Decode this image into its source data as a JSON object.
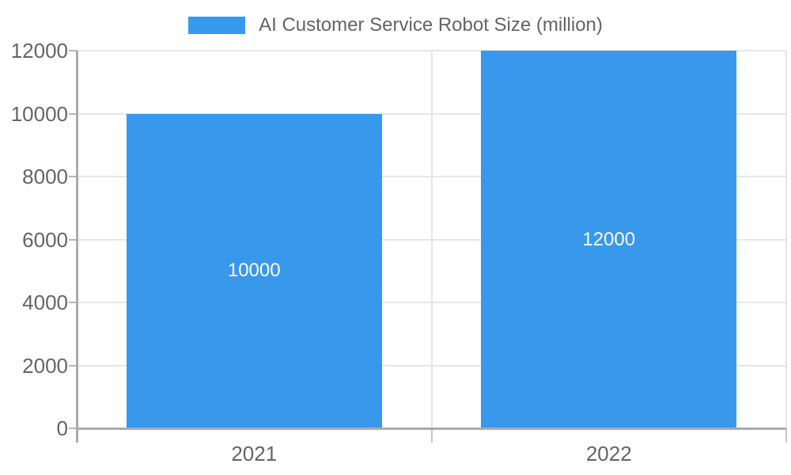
{
  "chart_data": {
    "type": "bar",
    "categories": [
      "2021",
      "2022"
    ],
    "values": [
      10000,
      12000
    ],
    "bar_labels": [
      "10000",
      "12000"
    ],
    "series_name": "AI Customer Service Robot Size (million)",
    "title": "",
    "xlabel": "",
    "ylabel": "",
    "ylim": [
      0,
      12000
    ],
    "ytick_interval": 2000,
    "yticks": [
      0,
      2000,
      4000,
      6000,
      8000,
      10000,
      12000
    ],
    "ytick_labels": [
      "0",
      "2000",
      "4000",
      "6000",
      "8000",
      "10000",
      "12000"
    ],
    "legend_position": "top-center",
    "grid": true,
    "colors": {
      "bar": "#3898ec",
      "gridline": "#e6e6e6",
      "axis": "#ababab",
      "y_tick": "#b5b5b5",
      "x_tick": "#c6c6c6",
      "text": "#646464",
      "bar_label_text": "#ffffff",
      "background": "#ffffff"
    }
  }
}
